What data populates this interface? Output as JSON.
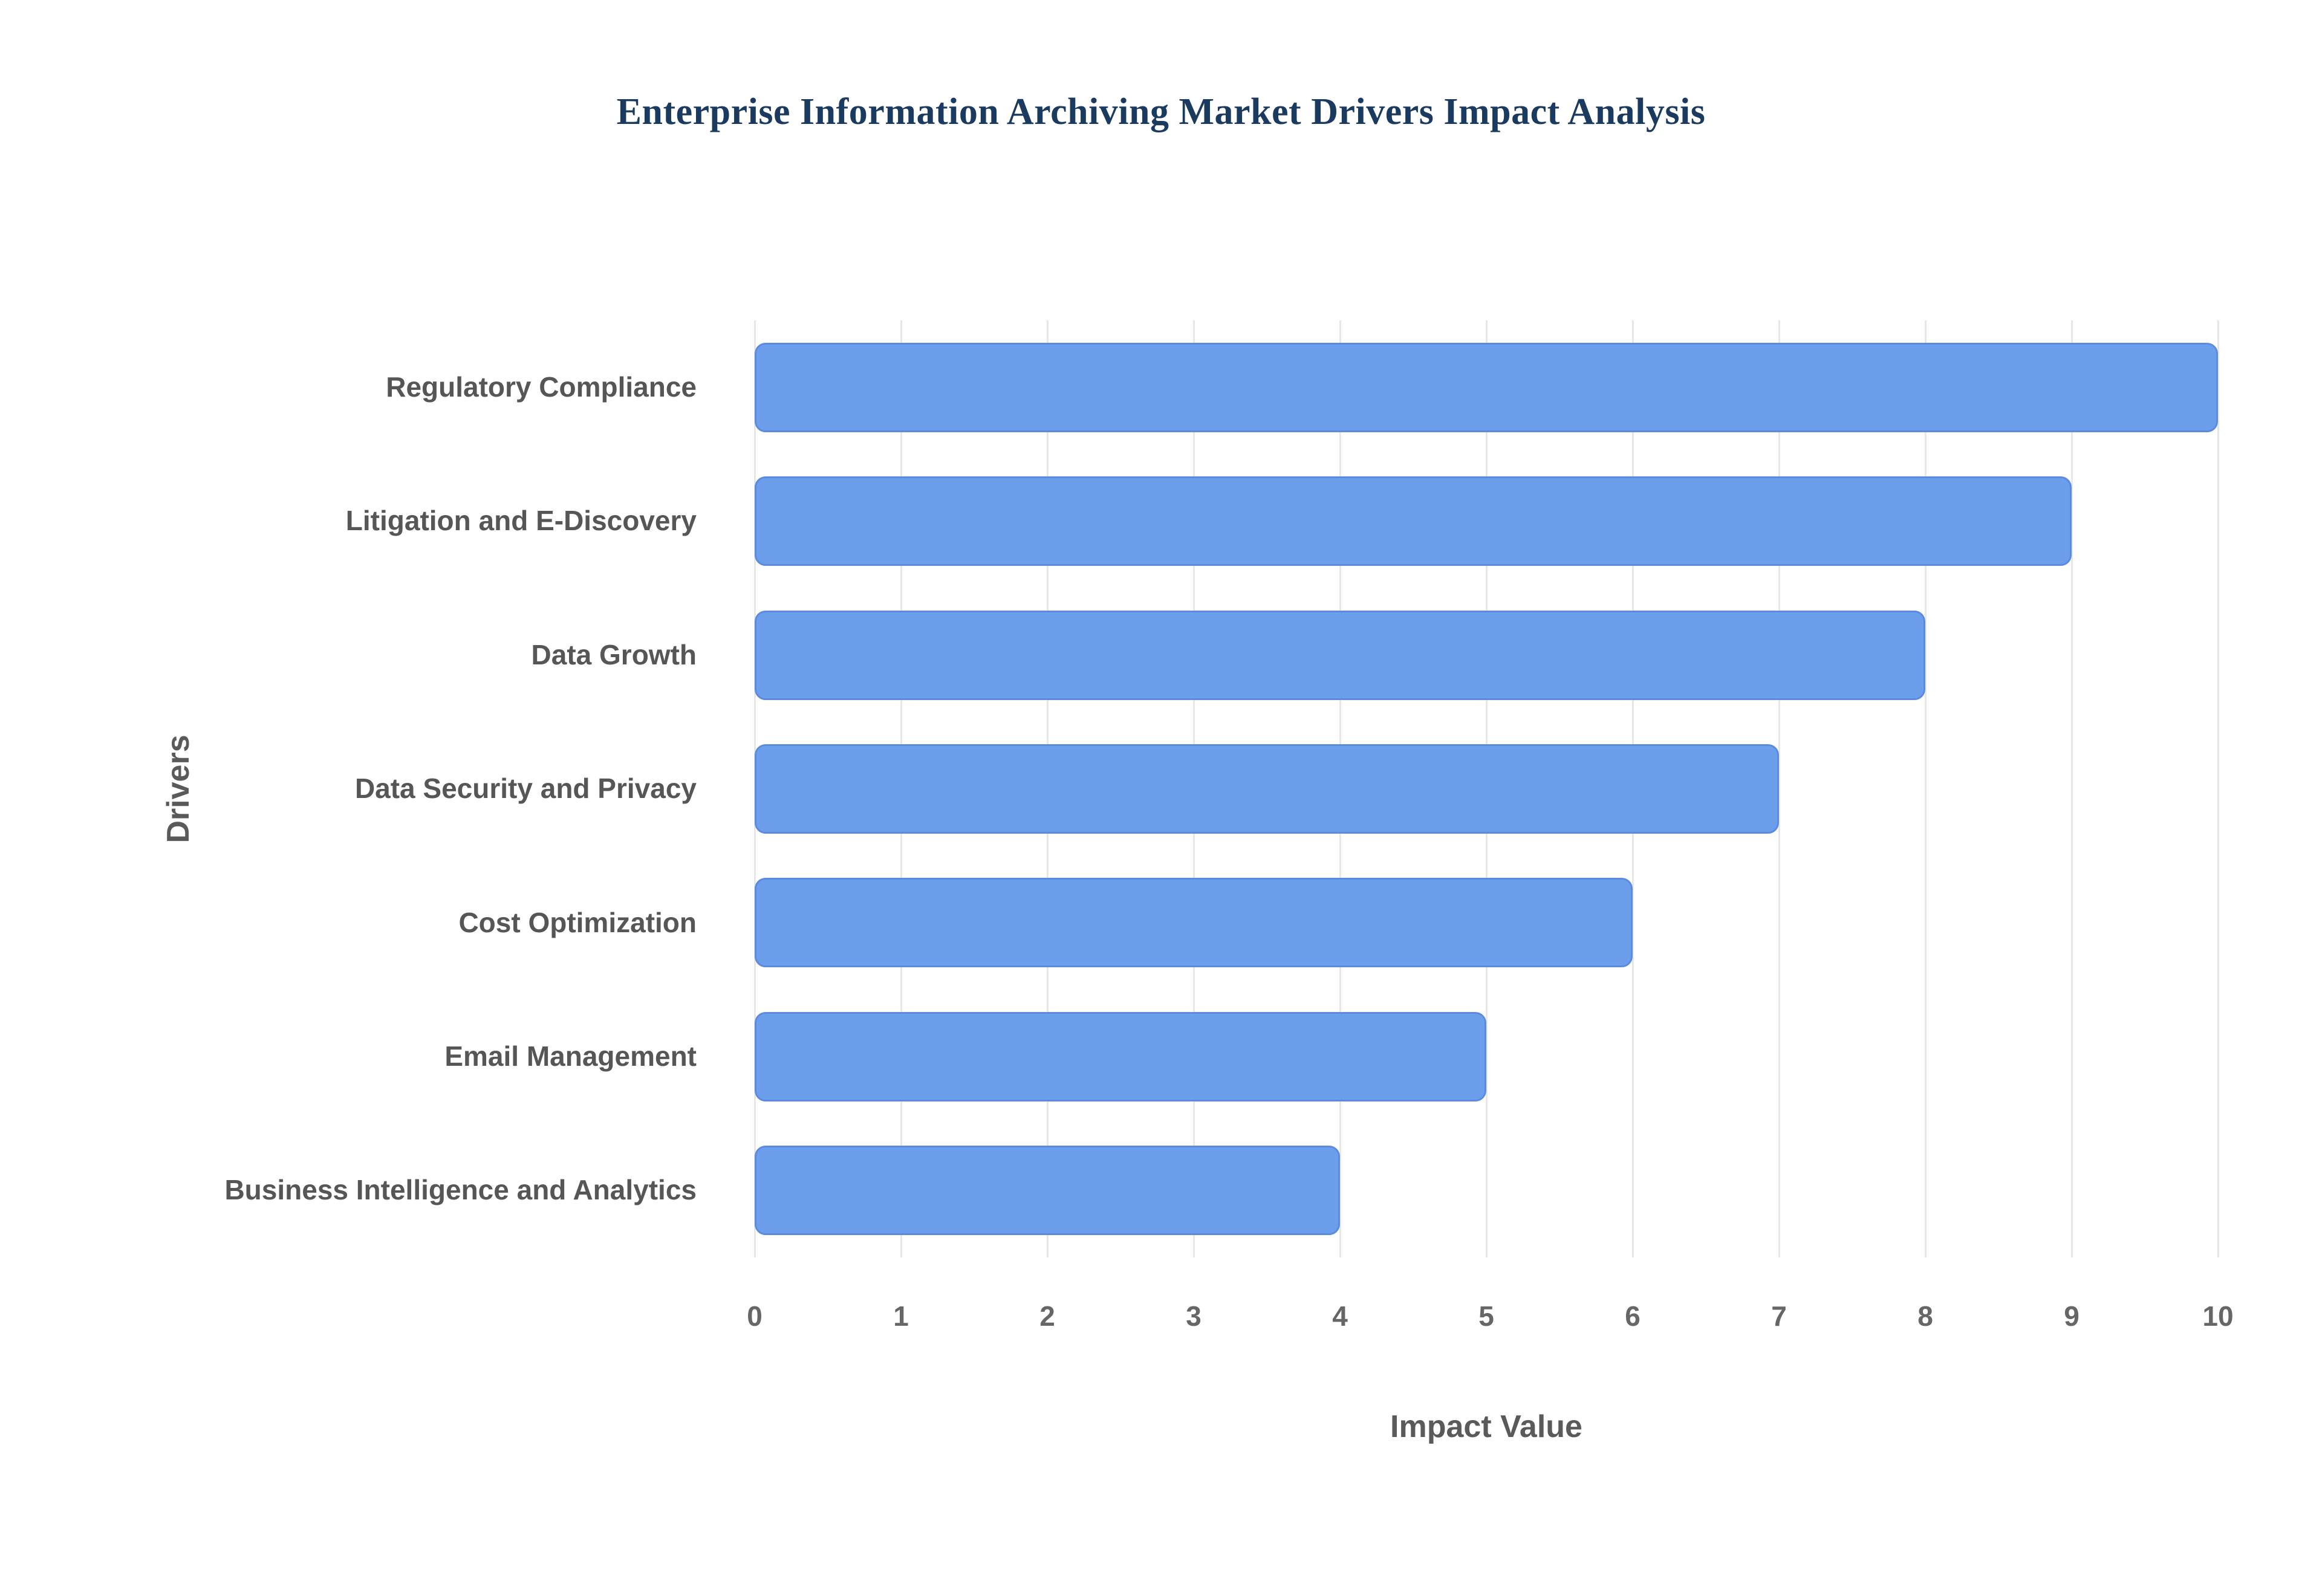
{
  "chart_data": {
    "type": "bar",
    "orientation": "horizontal",
    "title": "Enterprise Information Archiving Market Drivers Impact Analysis",
    "categories": [
      "Regulatory Compliance",
      "Litigation and E-Discovery",
      "Data Growth",
      "Data Security and Privacy",
      "Cost Optimization",
      "Email Management",
      "Business Intelligence and Analytics"
    ],
    "values": [
      10,
      9,
      8,
      7,
      6,
      5,
      4
    ],
    "xlabel": "Impact Value",
    "ylabel": "Drivers",
    "xlim": [
      0,
      10
    ],
    "xticks": [
      0,
      1,
      2,
      3,
      4,
      5,
      6,
      7,
      8,
      9,
      10
    ],
    "grid": true,
    "legend": "none",
    "bar_color": "#6d9eeb",
    "bar_border_color": "#5a8bdf",
    "title_color": "#1b3a5f",
    "axis_title_color": "#5a5a5a",
    "tick_label_color": "#666666",
    "category_label_color": "#565656",
    "gridline_color": "#e7e7e7",
    "background_color": "#ffffff"
  }
}
